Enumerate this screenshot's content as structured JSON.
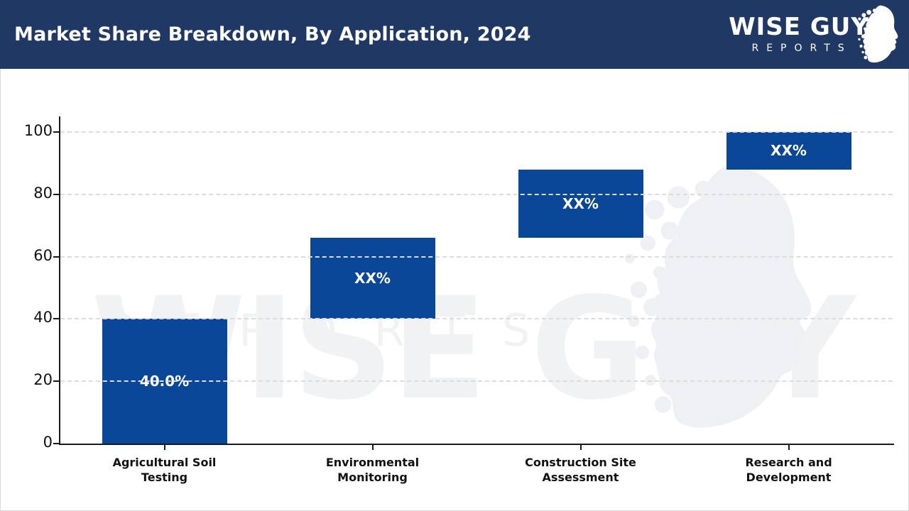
{
  "header": {
    "title": "Market Share Breakdown, By Application, 2024",
    "logo": {
      "line1": "WISE GUY",
      "line2": "REPORTS"
    }
  },
  "watermark": {
    "line1": "WISE GUY",
    "line2": "REPORTS"
  },
  "colors": {
    "header_bg": "#1f3864",
    "bar_blue": "#0b4798",
    "grid_gray": "#dcdcdc",
    "axis_black": "#1a1a1a",
    "watermark_gray": "#f1f2f4"
  },
  "chart_data": {
    "type": "bar",
    "subtype": "waterfall",
    "title": "Market Share Breakdown, By Application, 2024",
    "xlabel": "",
    "ylabel": "",
    "ylim": [
      0,
      105
    ],
    "grid": "dashed-horizontal",
    "legend": "none",
    "yticks": [
      0,
      20,
      40,
      60,
      80,
      100
    ],
    "categories": [
      "Agricultural Soil Testing",
      "Environmental Monitoring",
      "Construction Site Assessment",
      "Research and Development"
    ],
    "category_lines": [
      [
        "Agricultural Soil",
        "Testing"
      ],
      [
        "Environmental",
        "Monitoring"
      ],
      [
        "Construction Site",
        "Assessment"
      ],
      [
        "Research and",
        "Development"
      ]
    ],
    "segments": [
      {
        "category": "Agricultural Soil Testing",
        "start": 0,
        "end": 40,
        "value": 40,
        "value_label": "40.0%"
      },
      {
        "category": "Environmental Monitoring",
        "start": 40,
        "end": 66,
        "value": 26,
        "value_label": "XX%"
      },
      {
        "category": "Construction Site Assessment",
        "start": 66,
        "end": 88,
        "value": 22,
        "value_label": "XX%"
      },
      {
        "category": "Research and Development",
        "start": 88,
        "end": 100,
        "value": 12,
        "value_label": "XX%"
      }
    ]
  }
}
